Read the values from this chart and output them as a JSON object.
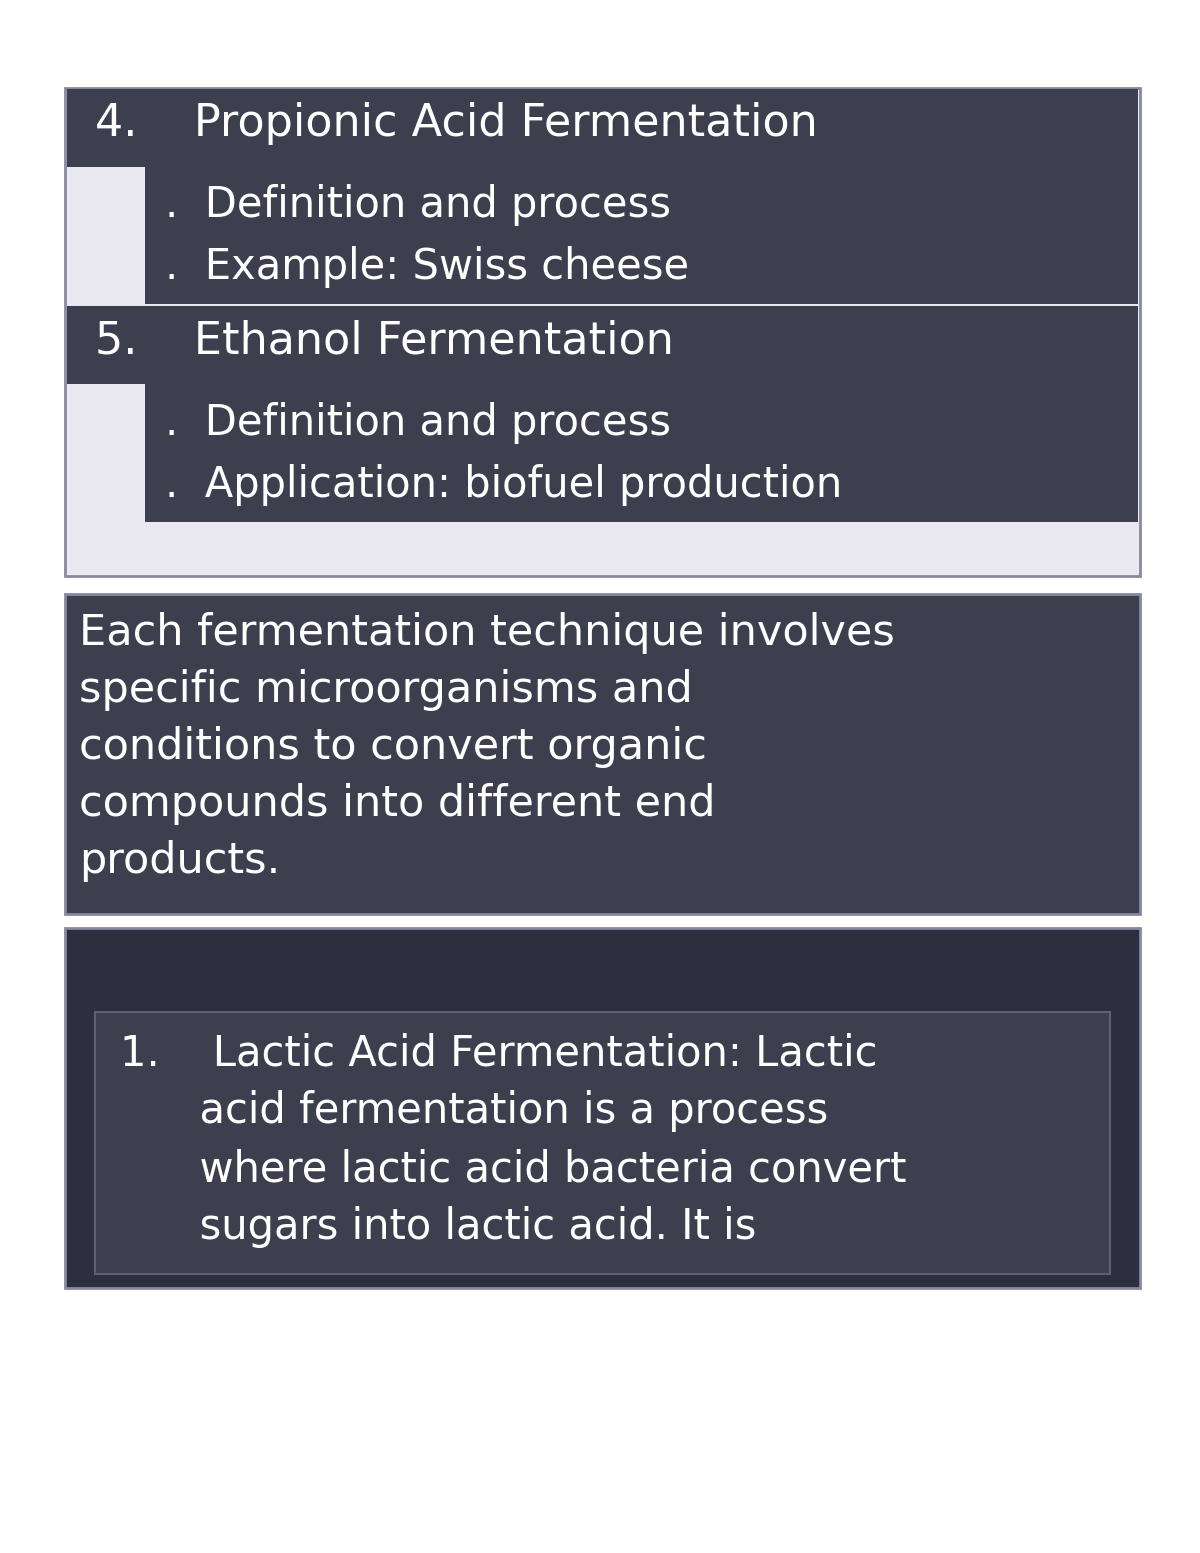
{
  "bg_color": "#ffffff",
  "dark_bg": "#3d3f4e",
  "light_dark_bg": "#383a4a",
  "text_color": "#ffffff",
  "border_color": "#8888a0",
  "figsize": [
    12.0,
    15.53
  ],
  "dpi": 100,
  "block1_title": "4.    Propionic Acid Fermentation",
  "block1_items": [
    ".  Definition and process",
    ".  Example: Swiss cheese"
  ],
  "block2_title": "5.    Ethanol Fermentation",
  "block2_items": [
    ".  Definition and process",
    ".  Application: biofuel production"
  ],
  "summary_lines": [
    "Each fermentation technique involves",
    "specific microorganisms and",
    "conditions to convert organic",
    "compounds into different end",
    "products."
  ],
  "lactic_lines": [
    "1.    Lactic Acid Fermentation: Lactic",
    "      acid fermentation is a process",
    "      where lactic acid bacteria convert",
    "      sugars into lactic acid. It is"
  ]
}
